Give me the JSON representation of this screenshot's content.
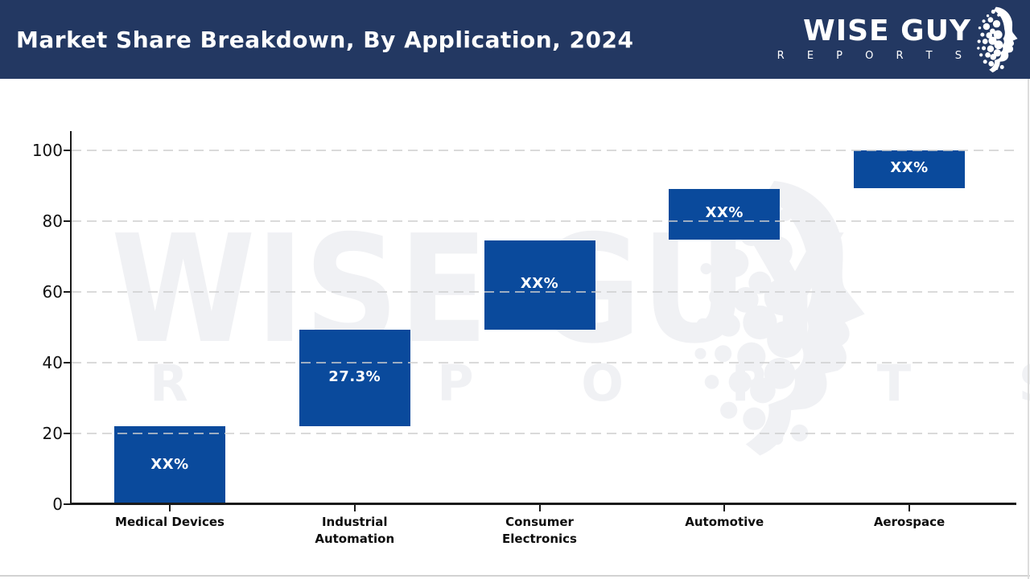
{
  "header": {
    "title": "Market Share Breakdown, By Application, 2024",
    "bg_color": "#233862",
    "logo": {
      "line1": "WISE GUY",
      "line2": "R E P O R T S"
    }
  },
  "watermark": {
    "line1": "WISE GUY",
    "line2": "R E P O R T S"
  },
  "chart_data": {
    "type": "bar",
    "subtype": "waterfall",
    "title": "Market Share Breakdown, By Application, 2024",
    "xlabel": "",
    "ylabel": "",
    "ylim": [
      0,
      100
    ],
    "yticks": [
      0,
      20,
      40,
      60,
      80,
      100
    ],
    "grid": "horizontal dashed",
    "legend": "none",
    "bar_color": "#0a4a9c",
    "bar_label_color": "#ffffff",
    "categories": [
      "Medical Devices",
      "Industrial Automation",
      "Consumer Electronics",
      "Automotive",
      "Aerospace"
    ],
    "bars": [
      {
        "category": "Medical Devices",
        "label_lines": [
          "Medical Devices"
        ],
        "range": [
          0,
          22
        ],
        "value_label": "XX%"
      },
      {
        "category": "Industrial Automation",
        "label_lines": [
          "Industrial",
          "Automation"
        ],
        "range": [
          22,
          49.3
        ],
        "value_label": "27.3%"
      },
      {
        "category": "Consumer Electronics",
        "label_lines": [
          "Consumer",
          "Electronics"
        ],
        "range": [
          49.3,
          74.6
        ],
        "value_label": "XX%"
      },
      {
        "category": "Automotive",
        "label_lines": [
          "Automotive"
        ],
        "range": [
          74.8,
          89.2
        ],
        "value_label": "XX%"
      },
      {
        "category": "Aerospace",
        "label_lines": [
          "Aerospace"
        ],
        "range": [
          89.4,
          100
        ],
        "value_label": "XX%"
      }
    ]
  }
}
